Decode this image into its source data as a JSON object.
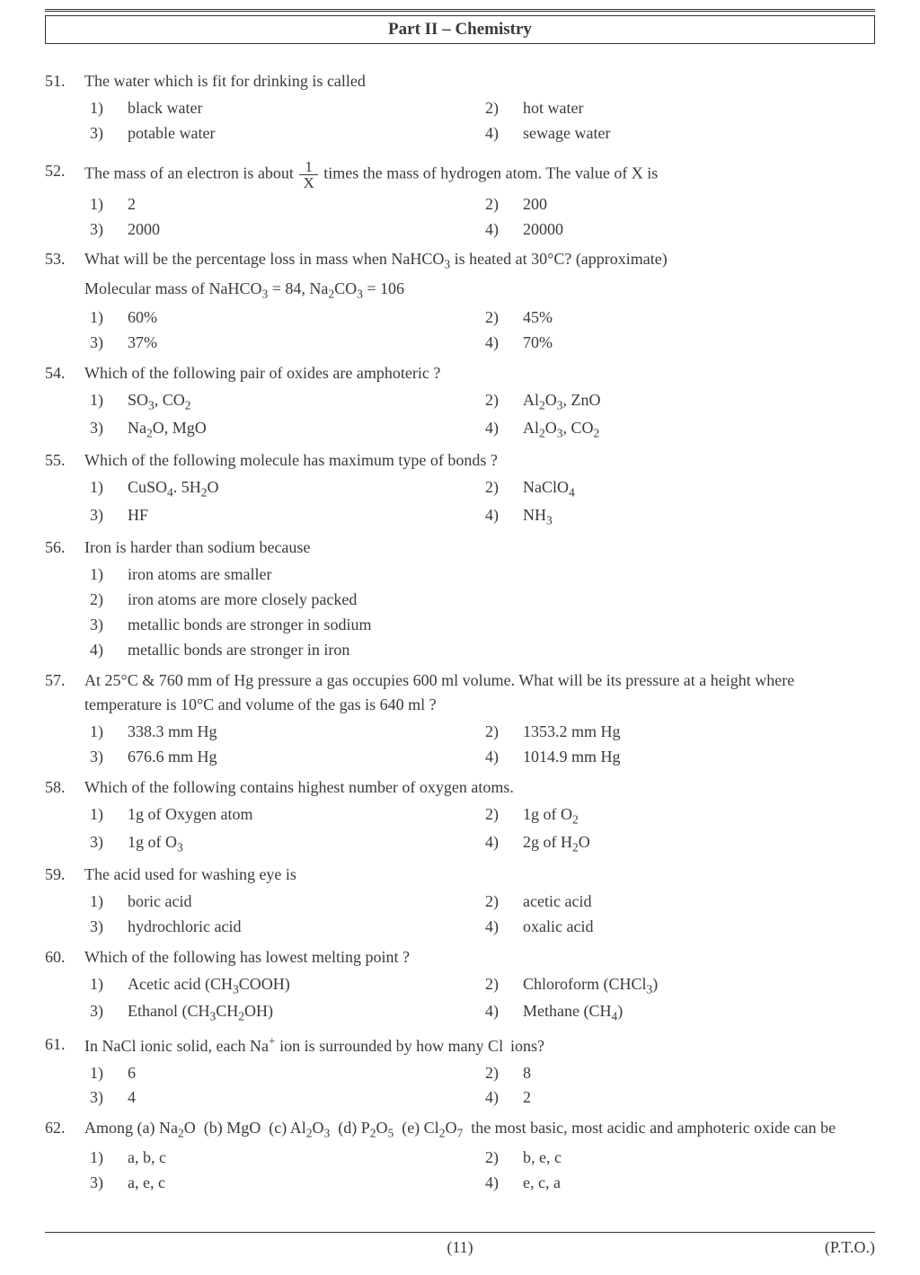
{
  "page": {
    "part_title": "Part II – Chemistry",
    "page_number": "(11)",
    "pto": "(P.T.O.)"
  },
  "questions": [
    {
      "num": "51.",
      "text": "The water which is fit for drinking is called",
      "layout": "2col",
      "options": [
        {
          "n": "1)",
          "t": "black water"
        },
        {
          "n": "2)",
          "t": "hot water"
        },
        {
          "n": "3)",
          "t": "potable water"
        },
        {
          "n": "4)",
          "t": "sewage water"
        }
      ]
    },
    {
      "num": "52.",
      "text_html": "The mass of an electron is about <span class='frac'><span class='num'>1</span><span class='den'>X</span></span> times the mass of hydrogen atom. The value of X is",
      "layout": "2col",
      "spacer": true,
      "options": [
        {
          "n": "1)",
          "t": "2"
        },
        {
          "n": "2)",
          "t": "200"
        },
        {
          "n": "3)",
          "t": "2000"
        },
        {
          "n": "4)",
          "t": "20000"
        }
      ]
    },
    {
      "num": "53.",
      "text_html": "What will be the percentage loss in mass when NaHCO<sub>3</sub> is heated at 30°C? (approximate)",
      "subtext_html": "Molecular mass of NaHCO<sub>3</sub> = 84, Na<sub>2</sub>CO<sub>3</sub> = 106",
      "layout": "2col",
      "options": [
        {
          "n": "1)",
          "t": "60%"
        },
        {
          "n": "2)",
          "t": "45%"
        },
        {
          "n": "3)",
          "t": "37%"
        },
        {
          "n": "4)",
          "t": "70%"
        }
      ]
    },
    {
      "num": "54.",
      "text": "Which of the following pair of oxides are amphoteric ?",
      "layout": "2col",
      "options": [
        {
          "n": "1)",
          "t_html": "SO<sub>3</sub>, CO<sub>2</sub>"
        },
        {
          "n": "2)",
          "t_html": "Al<sub>2</sub>O<sub>3</sub>, ZnO"
        },
        {
          "n": "3)",
          "t_html": "Na<sub>2</sub>O, MgO"
        },
        {
          "n": "4)",
          "t_html": "Al<sub>2</sub>O<sub>3</sub>, CO<sub>2</sub>"
        }
      ]
    },
    {
      "num": "55.",
      "text": "Which of the following molecule has maximum type of bonds ?",
      "layout": "2col",
      "options": [
        {
          "n": "1)",
          "t_html": "CuSO<sub>4</sub>. 5H<sub>2</sub>O"
        },
        {
          "n": "2)",
          "t_html": "NaClO<sub>4</sub>"
        },
        {
          "n": "3)",
          "t": "HF"
        },
        {
          "n": "4)",
          "t_html": "NH<sub>3</sub>"
        }
      ]
    },
    {
      "num": "56.",
      "text": "Iron is harder than sodium because",
      "layout": "1col",
      "options": [
        {
          "n": "1)",
          "t": "iron atoms are smaller"
        },
        {
          "n": "2)",
          "t": "iron atoms are more closely packed"
        },
        {
          "n": "3)",
          "t": "metallic bonds are stronger in sodium"
        },
        {
          "n": "4)",
          "t": "metallic bonds are stronger in iron"
        }
      ]
    },
    {
      "num": "57.",
      "text": "At 25°C & 760 mm of Hg pressure a gas occupies 600 ml volume. What will be its pressure at a height where temperature is 10°C and volume of the gas is 640 ml ?",
      "layout": "2col",
      "options": [
        {
          "n": "1)",
          "t": "338.3 mm Hg"
        },
        {
          "n": "2)",
          "t": "1353.2 mm Hg"
        },
        {
          "n": "3)",
          "t": "676.6 mm Hg"
        },
        {
          "n": "4)",
          "t": "1014.9 mm Hg"
        }
      ]
    },
    {
      "num": "58.",
      "text": "Which of the following contains highest number of oxygen atoms.",
      "layout": "2col",
      "options": [
        {
          "n": "1)",
          "t": "1g of Oxygen atom"
        },
        {
          "n": "2)",
          "t_html": "1g of O<sub>2</sub>"
        },
        {
          "n": "3)",
          "t_html": "1g of O<sub>3</sub>"
        },
        {
          "n": "4)",
          "t_html": "2g of H<sub>2</sub>O"
        }
      ]
    },
    {
      "num": "59.",
      "text": "The acid used for washing eye is",
      "layout": "2col",
      "options": [
        {
          "n": "1)",
          "t": "boric acid"
        },
        {
          "n": "2)",
          "t": "acetic acid"
        },
        {
          "n": "3)",
          "t": "hydrochloric acid"
        },
        {
          "n": "4)",
          "t": "oxalic acid"
        }
      ]
    },
    {
      "num": "60.",
      "text": "Which of the following has lowest melting point ?",
      "layout": "2col",
      "options": [
        {
          "n": "1)",
          "t_html": "Acetic acid (CH<sub>3</sub>COOH)"
        },
        {
          "n": "2)",
          "t_html": "Chloroform (CHCl<sub>3</sub>)"
        },
        {
          "n": "3)",
          "t_html": "Ethanol (CH<sub>3</sub>CH<sub>2</sub>OH)"
        },
        {
          "n": "4)",
          "t_html": "Methane (CH<sub>4</sub>)"
        }
      ]
    },
    {
      "num": "61.",
      "text_html": "In NaCl ionic solid, each Na<sup>+</sup> ion is surrounded by how many Cl<sup>&nbsp;</sup> ions?",
      "layout": "2col",
      "options": [
        {
          "n": "1)",
          "t": "6"
        },
        {
          "n": "2)",
          "t": "8"
        },
        {
          "n": "3)",
          "t": "4"
        },
        {
          "n": "4)",
          "t": "2"
        }
      ]
    },
    {
      "num": "62.",
      "text_html": "Among (a) Na<sub>2</sub>O&nbsp; (b) MgO&nbsp; (c) Al<sub>2</sub>O<sub>3</sub>&nbsp; (d) P<sub>2</sub>O<sub>5</sub>&nbsp; (e) Cl<sub>2</sub>O<sub>7</sub>&nbsp; the most basic, most acidic and amphoteric oxide can be",
      "layout": "2col",
      "options": [
        {
          "n": "1)",
          "t": "a, b, c"
        },
        {
          "n": "2)",
          "t": "b, e, c"
        },
        {
          "n": "3)",
          "t": "a, e, c"
        },
        {
          "n": "4)",
          "t": "e, c, a"
        }
      ]
    }
  ]
}
